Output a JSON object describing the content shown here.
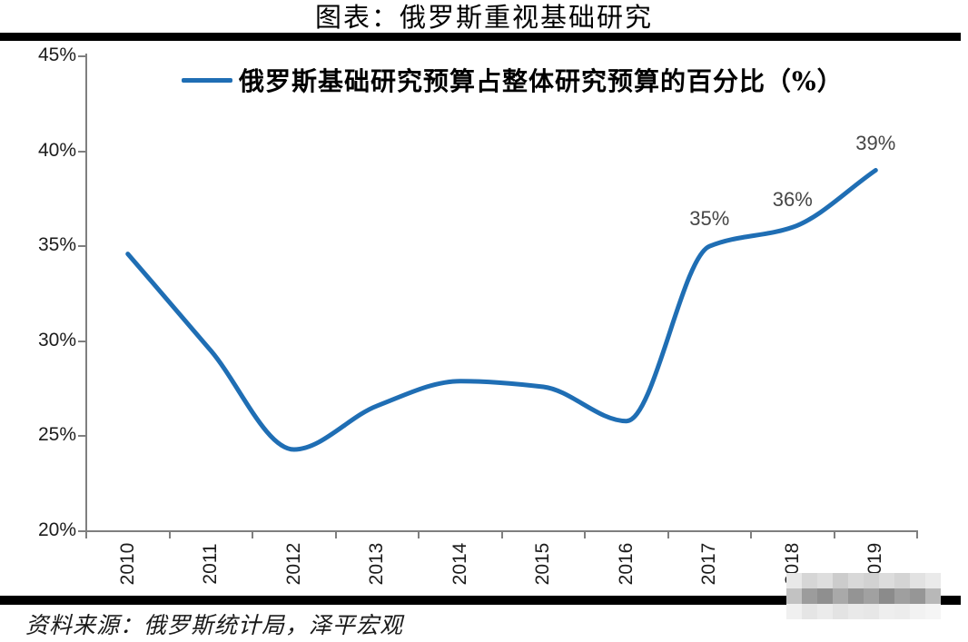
{
  "title": "图表：俄罗斯重视基础研究",
  "legend": {
    "label": "俄罗斯基础研究预算占整体研究预算的百分比（%）"
  },
  "source": "资料来源：俄罗斯统计局，泽平宏观",
  "colors": {
    "line": "#1F6EB4",
    "axis": "#7f7f7f",
    "divider_bar": "#000000",
    "point_label": "#464646",
    "tick_label": "#1c1c1c"
  },
  "chart_data": {
    "type": "line",
    "title": "图表：俄罗斯重视基础研究",
    "x": [
      "2010",
      "2011",
      "2012",
      "2013",
      "2014",
      "2015",
      "2016",
      "2017",
      "2018",
      "2019"
    ],
    "series": [
      {
        "name": "俄罗斯基础研究预算占整体研究预算的百分比（%）",
        "values": [
          34.6,
          29.5,
          24.3,
          26.6,
          27.9,
          27.6,
          25.8,
          35,
          36,
          39
        ]
      }
    ],
    "point_labels": [
      "",
      "",
      "",
      "",
      "",
      "",
      "",
      "35%",
      "36%",
      "39%"
    ],
    "yticks": [
      "45%",
      "40%",
      "35%",
      "30%",
      "25%",
      "20%"
    ],
    "ylim": [
      20,
      45
    ],
    "xlabel": "",
    "ylabel": "",
    "grid": false,
    "legend_position": "top-center",
    "line_smoothing": "monotone"
  },
  "watermark": {
    "rows": [
      [
        "#e8e8e8",
        "#d6d6d6",
        "#dedede",
        "#cccccc",
        "#d8d8d8",
        "#d2d2d2",
        "#dcdcdc",
        "#d4d4d4",
        "#e2e2e2",
        "#eaeaea"
      ],
      [
        "#c2c2c2",
        "#9c9c9c",
        "#8f8f8f",
        "#a9a9a9",
        "#949494",
        "#a1a1a1",
        "#8b8b8b",
        "#9f9f9f",
        "#969696",
        "#b8b8b8"
      ],
      [
        "#f0f0f0",
        "#e5e5e5",
        "#ebebeb",
        "#e3e3e3",
        "#e9e9e9",
        "#e7e7e7",
        "#eeeeee",
        "#ececec",
        "#f2f2f2",
        "#f5f5f5"
      ]
    ]
  }
}
